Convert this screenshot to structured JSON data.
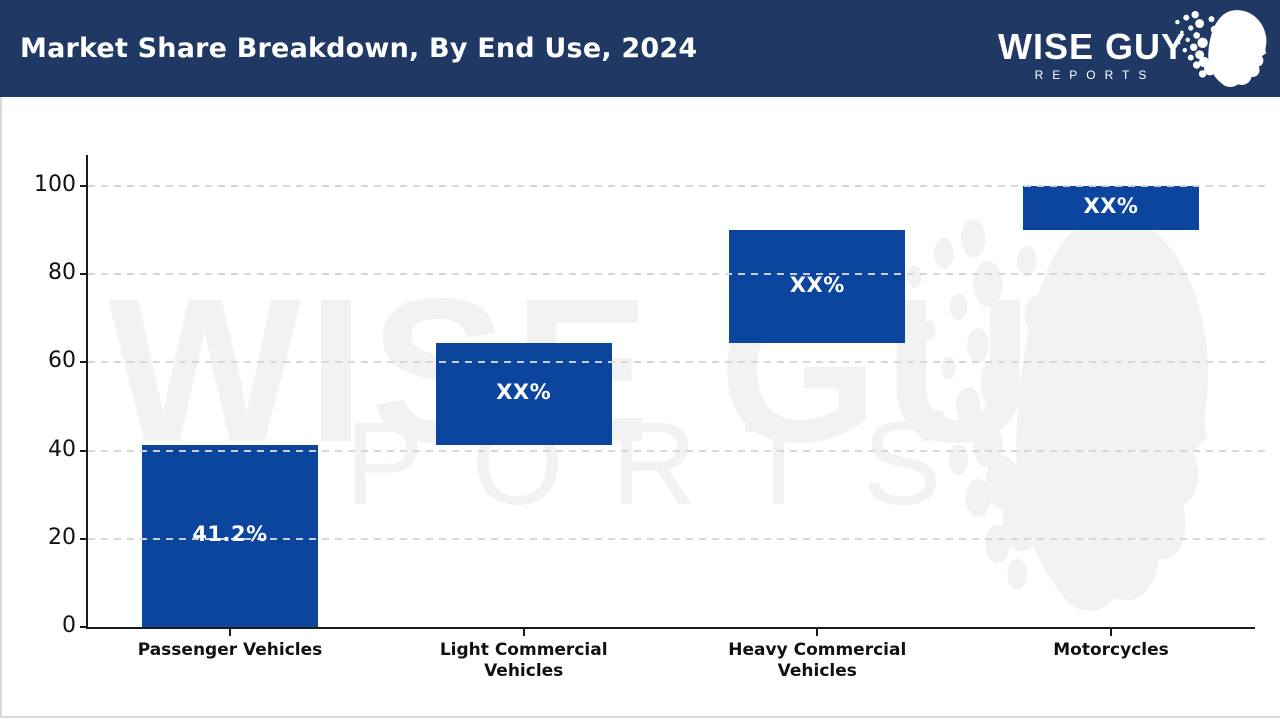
{
  "header": {
    "title": "Market Share Breakdown, By End Use, 2024",
    "logo": {
      "wordmark": "WISE GUY",
      "subtitle": "REPORTS"
    }
  },
  "watermark": {
    "line1": "WISE GUY",
    "line2": "PORTS"
  },
  "theme": {
    "header_bg": "#1f3864",
    "bar": "#0b459e",
    "bar_label": "#ffffff",
    "axis": "#1a1a1a",
    "text": "#111111",
    "grid": "#d6d6d6",
    "frame": "#d9d9d9",
    "watermark": "#f2f2f2"
  },
  "chart_data": {
    "type": "bar",
    "subtype": "waterfall",
    "title": "Market Share Breakdown, By End Use, 2024",
    "categories": [
      "Passenger Vehicles",
      "Light Commercial Vehicles",
      "Heavy Commercial Vehicles",
      "Motorcycles"
    ],
    "category_lines": [
      [
        "Passenger Vehicles"
      ],
      [
        "Light Commercial",
        "Vehicles"
      ],
      [
        "Heavy Commercial",
        "Vehicles"
      ],
      [
        "Motorcycles"
      ]
    ],
    "segments": [
      {
        "category": "Passenger Vehicles",
        "start": 0,
        "end": 41.2,
        "label": "41.2%"
      },
      {
        "category": "Light Commercial Vehicles",
        "start": 41.2,
        "end": 64.3,
        "label": "XX%"
      },
      {
        "category": "Heavy Commercial Vehicles",
        "start": 64.3,
        "end": 90.0,
        "label": "XX%"
      },
      {
        "category": "Motorcycles",
        "start": 90.0,
        "end": 100.0,
        "label": "XX%"
      },
      {
        "category": "_axis",
        "start": 0,
        "end": 0,
        "label": ""
      }
    ],
    "xlabel": "",
    "ylabel": "",
    "ylim": [
      0,
      100
    ],
    "yticks": [
      0,
      20,
      40,
      60,
      80,
      100
    ],
    "grid": "horizontal dashed",
    "legend": "none"
  }
}
